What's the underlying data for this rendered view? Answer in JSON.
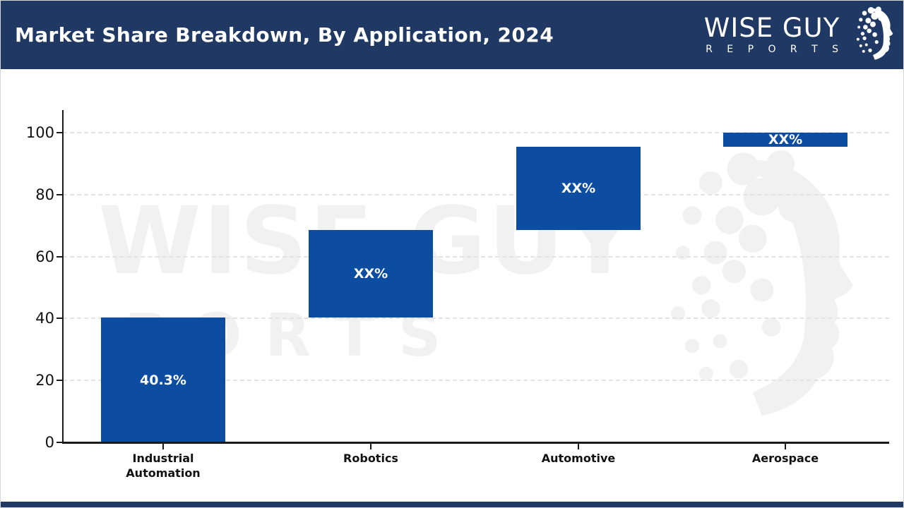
{
  "header": {
    "title": "Market Share Breakdown, By Application, 2024",
    "logo": {
      "brand_line1": "WISE GUY",
      "brand_line2": "R E P O R T S"
    }
  },
  "watermark": {
    "line1": "WISE GUY",
    "line2": "P O R T S",
    "head_icon": "dotted-head-profile"
  },
  "chart_data": {
    "type": "bar",
    "variant": "waterfall-percentage-breakdown",
    "title": "Market Share Breakdown, By Application, 2024",
    "categories": [
      "Industrial Automation",
      "Robotics",
      "Automotive",
      "Aerospace"
    ],
    "segments": [
      {
        "category": "Industrial Automation",
        "start": 0,
        "end": 40.3,
        "label": "40.3%"
      },
      {
        "category": "Robotics",
        "start": 40.3,
        "end": 68.5,
        "label": "XX%"
      },
      {
        "category": "Automotive",
        "start": 68.5,
        "end": 95.5,
        "label": "XX%"
      },
      {
        "category": "Aerospace",
        "start": 95.5,
        "end": 100,
        "label": "XX%"
      }
    ],
    "yticks": [
      0,
      20,
      40,
      60,
      80,
      100
    ],
    "ylim": [
      0,
      106
    ],
    "xlabel": "",
    "ylabel": "",
    "grid": "horizontal-dashed",
    "legend": "none",
    "bar_color": "#0c4da2",
    "bar_label_color": "#ffffff",
    "axis_color": "#1a1a1a",
    "grid_color": "#e3e3e3"
  },
  "colors": {
    "header_bg": "#1f3864",
    "footer_bg": "#1f3864",
    "watermark": "#f1f1f1"
  }
}
